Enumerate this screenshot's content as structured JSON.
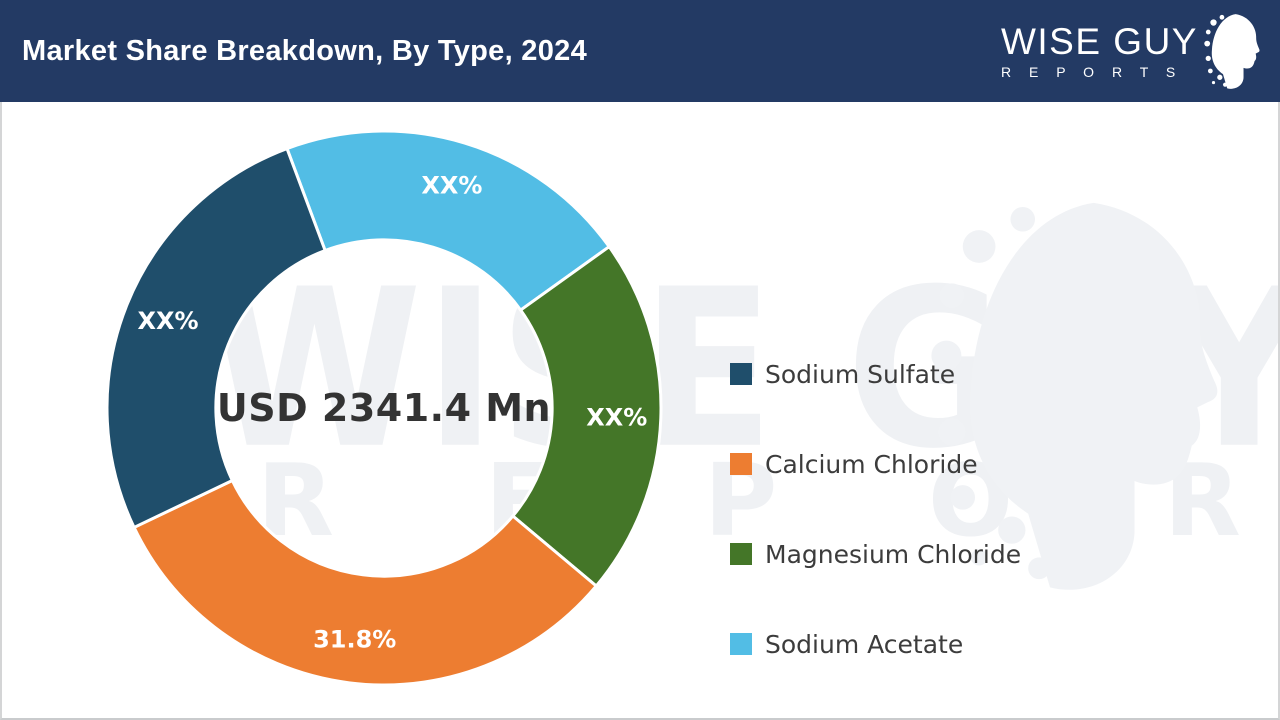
{
  "header": {
    "title": "Market Share Breakdown, By Type, 2024",
    "background": "#233A64",
    "logo": {
      "line1": "WISE GUY",
      "line2": "R E P O R T S"
    }
  },
  "watermark": {
    "line1": "WISE GUY",
    "line2": "R E P O R T S"
  },
  "chart_data": {
    "type": "pie",
    "subtype": "donut",
    "title": "Market Share Breakdown, By Type, 2024",
    "center_label": "USD 2341.4 Mn",
    "inner_radius_ratio": 0.607,
    "label_radius_ratio": 0.832,
    "segments": [
      {
        "label": "Sodium Acetate",
        "display_value": "XX%",
        "pct": 20.8,
        "start_angle": -20.5,
        "color": "#52BDE5"
      },
      {
        "label": "Magnesium Chloride",
        "display_value": "XX%",
        "pct": 21.0,
        "start_angle": 54.38,
        "color": "#447628"
      },
      {
        "label": "Calcium Chloride",
        "display_value": "31.8%",
        "pct": 31.8,
        "start_angle": 129.98,
        "color": "#ED7D31"
      },
      {
        "label": "Sodium Sulfate",
        "display_value": "XX%",
        "pct": 26.4,
        "start_angle": 244.46,
        "color": "#1F4E6B"
      }
    ]
  },
  "legend": {
    "items": [
      {
        "label": "Sodium Sulfate",
        "color": "#1F4E6B"
      },
      {
        "label": "Calcium Chloride",
        "color": "#ED7D31"
      },
      {
        "label": "Magnesium Chloride",
        "color": "#447628"
      },
      {
        "label": "Sodium Acetate",
        "color": "#52BDE5"
      }
    ]
  }
}
